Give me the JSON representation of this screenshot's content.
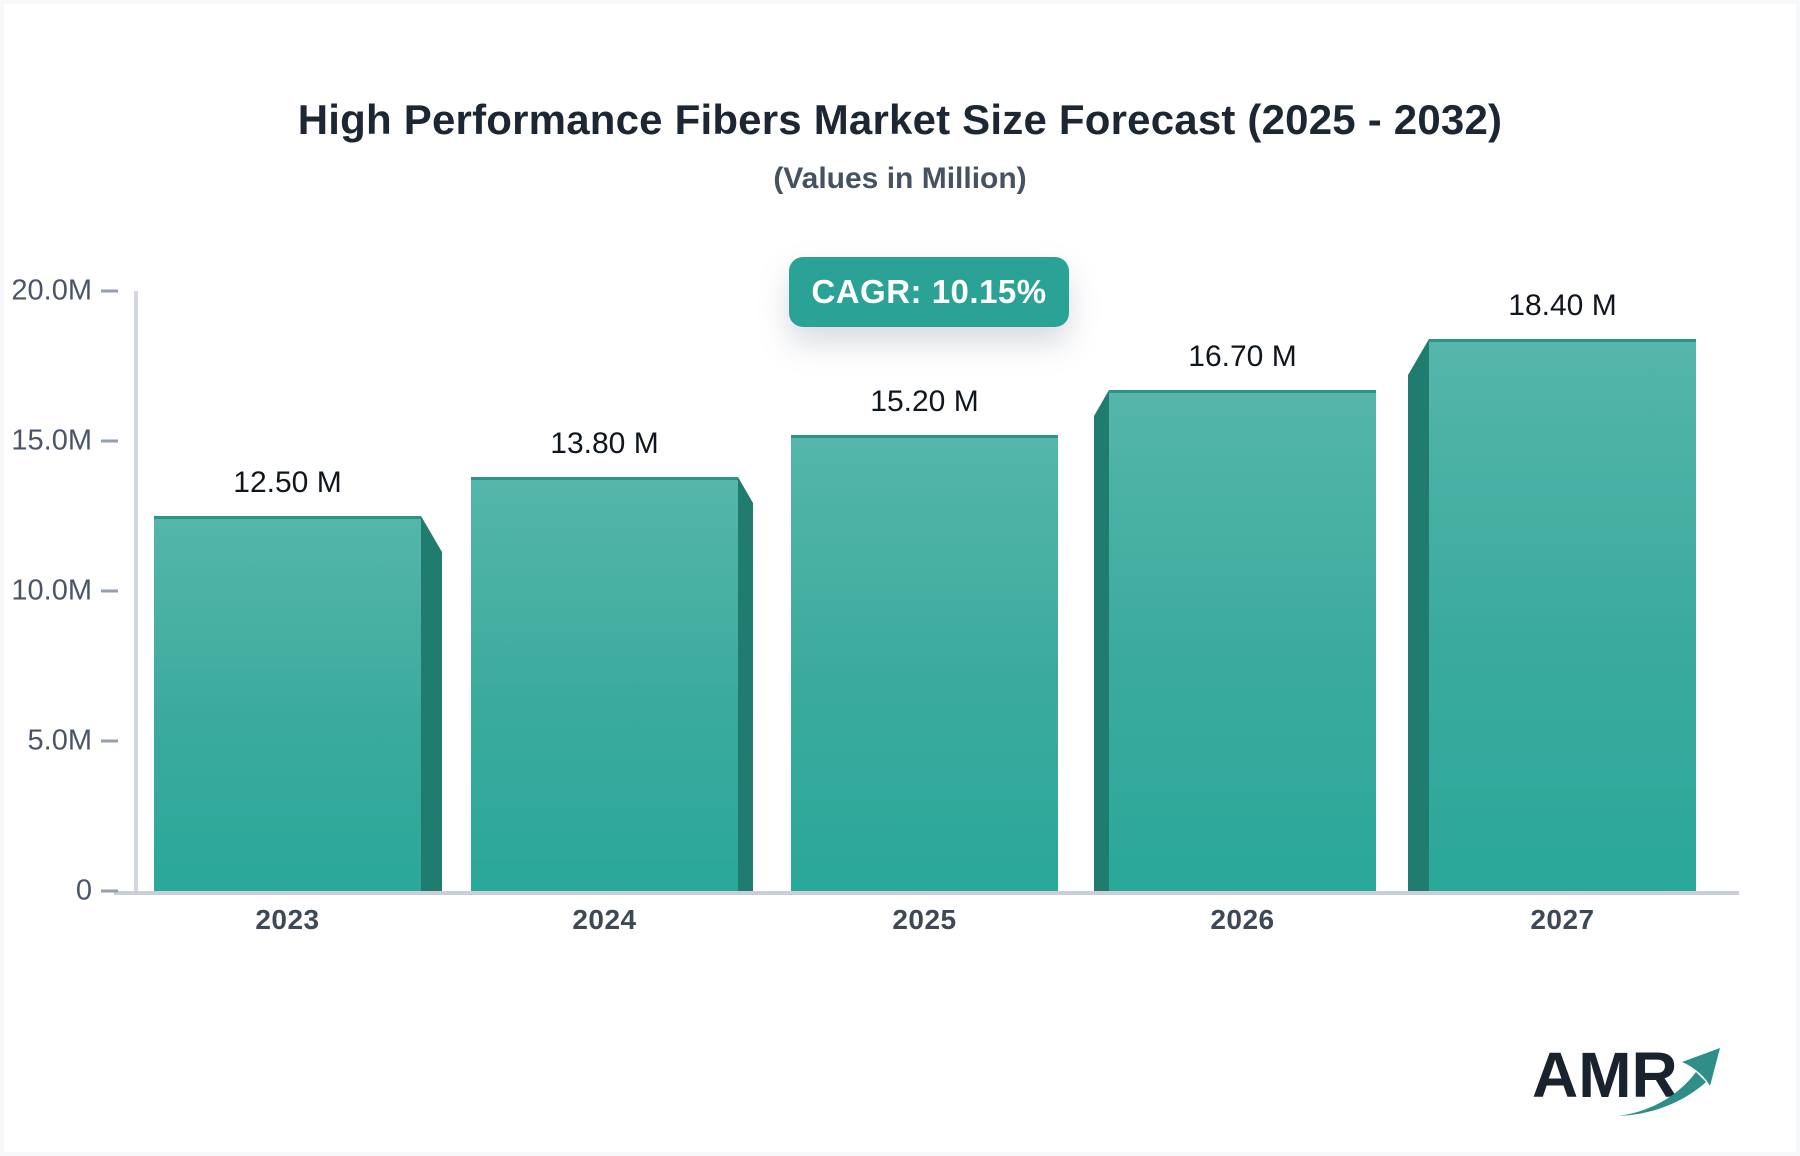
{
  "title": "High Performance Fibers Market Size Forecast (2025 - 2032)",
  "subtitle": "(Values in Million)",
  "badge": {
    "label": "CAGR: 10.15%",
    "color": "#2aa296"
  },
  "logo": {
    "text": "AMR",
    "arrow_color": "#2f8f88",
    "text_color": "#18232e"
  },
  "chart_data": {
    "type": "bar",
    "title": "High Performance Fibers Market Size Forecast (2025 - 2032)",
    "subtitle": "(Values in Million)",
    "categories": [
      "2023",
      "2024",
      "2025",
      "2026",
      "2027"
    ],
    "values": [
      12.5,
      13.8,
      15.2,
      16.7,
      18.4
    ],
    "bar_labels": [
      "12.50 M",
      "13.80 M",
      "15.20 M",
      "16.70 M",
      "18.40 M"
    ],
    "unit": "Million",
    "ylabel": "",
    "xlabel": "",
    "ylim": [
      0,
      20
    ],
    "y_tick_values": [
      20,
      15,
      10,
      5,
      0
    ],
    "y_tick_labels": [
      "20.0M",
      "15.0M",
      "10.0M",
      "5.0M",
      "0"
    ],
    "grid": "off",
    "legend": "none",
    "annotation": "CAGR: 10.15%",
    "bar_color_top": "#55b6aa",
    "bar_color_bottom": "#2aa89a",
    "bar_side_color": "#1f7c6e",
    "effect": "3d-perspective-bars"
  }
}
